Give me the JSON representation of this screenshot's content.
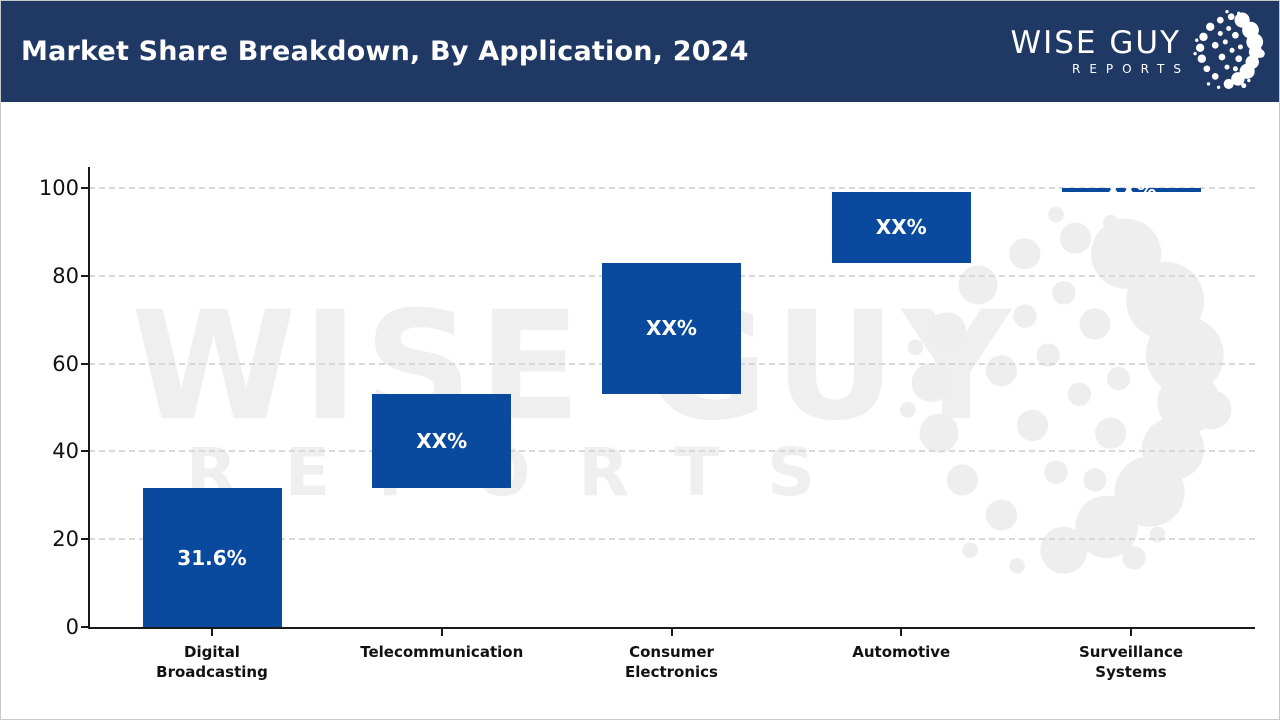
{
  "page": {
    "background": "#ffffff",
    "border_color": "#c9c9c9"
  },
  "header": {
    "title": "Market Share Breakdown, By Application, 2024",
    "background": "#1f3864",
    "logo": {
      "brand_line1": "WISE GUY",
      "brand_line2": "REPORTS"
    }
  },
  "watermark": {
    "line1": "WISE GUY",
    "line2": "REPORTS"
  },
  "chart_data": {
    "type": "bar",
    "subtype": "stacked-waterfall",
    "title": "Market Share Breakdown, By Application, 2024",
    "xlabel": "",
    "ylabel": "",
    "ylim": [
      0,
      100
    ],
    "yticks": [
      0,
      20,
      40,
      60,
      80,
      100
    ],
    "grid": "horizontal-dashed",
    "legend": "none",
    "bar_color": "#0a4a9e",
    "bar_label_color": "#ffffff",
    "categories": [
      "Digital Broadcasting",
      "Telecommunication",
      "Consumer Electronics",
      "Automotive",
      "Surveillance Systems"
    ],
    "bars": [
      {
        "category": "Digital Broadcasting",
        "label_lines": [
          "Digital",
          "Broadcasting"
        ],
        "start": 0,
        "end": 31.6,
        "value_label": "31.6%"
      },
      {
        "category": "Telecommunication",
        "label_lines": [
          "Telecommunication"
        ],
        "start": 31.6,
        "end": 53,
        "value_label": "XX%"
      },
      {
        "category": "Consumer Electronics",
        "label_lines": [
          "Consumer",
          "Electronics"
        ],
        "start": 53,
        "end": 83,
        "value_label": "XX%"
      },
      {
        "category": "Automotive",
        "label_lines": [
          "Automotive"
        ],
        "start": 83,
        "end": 99,
        "value_label": "XX%"
      },
      {
        "category": "Surveillance Systems",
        "label_lines": [
          "Surveillance",
          "Systems"
        ],
        "start": 99,
        "end": 100,
        "value_label": "XX%"
      }
    ]
  }
}
